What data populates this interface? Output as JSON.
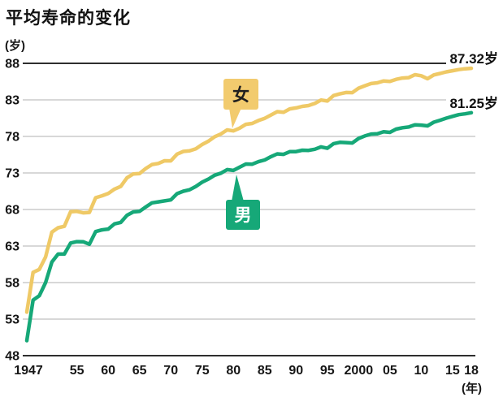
{
  "title": "平均寿命的变化",
  "chart_data": {
    "type": "line",
    "title": "平均寿命的变化",
    "y_unit_label": "(岁)",
    "x_unit_label": "(年)",
    "ylim": [
      48,
      88
    ],
    "y_ticks": [
      48,
      53,
      58,
      63,
      68,
      73,
      78,
      83,
      88
    ],
    "xlim": [
      1947,
      2018
    ],
    "x_tick_years": [
      1947,
      1955,
      1960,
      1965,
      1970,
      1975,
      1980,
      1985,
      1990,
      1995,
      2000,
      2005,
      2010,
      2015,
      2018
    ],
    "x_tick_labels": [
      "1947",
      "55",
      "60",
      "65",
      "70",
      "75",
      "80",
      "85",
      "90",
      "95",
      "2000",
      "05",
      "10",
      "15",
      "18"
    ],
    "grid": "horizontal",
    "legend_position": "inline-bubbles",
    "years": [
      1947,
      1948,
      1949,
      1950,
      1951,
      1952,
      1953,
      1954,
      1955,
      1956,
      1957,
      1958,
      1959,
      1960,
      1961,
      1962,
      1963,
      1964,
      1965,
      1966,
      1967,
      1968,
      1969,
      1970,
      1971,
      1972,
      1973,
      1974,
      1975,
      1976,
      1977,
      1978,
      1979,
      1980,
      1981,
      1982,
      1983,
      1984,
      1985,
      1986,
      1987,
      1988,
      1989,
      1990,
      1991,
      1992,
      1993,
      1994,
      1995,
      1996,
      1997,
      1998,
      1999,
      2000,
      2001,
      2002,
      2003,
      2004,
      2005,
      2006,
      2007,
      2008,
      2009,
      2010,
      2011,
      2012,
      2013,
      2014,
      2015,
      2016,
      2017,
      2018
    ],
    "series": [
      {
        "name": "女",
        "color": "#EFC966",
        "bubble_fill": "#F2CB6E",
        "bubble_text_color": "#1f1f1f",
        "end_label": "87.32岁",
        "values": [
          53.96,
          59.4,
          59.8,
          61.5,
          64.9,
          65.5,
          65.7,
          67.69,
          67.75,
          67.54,
          67.6,
          69.61,
          69.88,
          70.19,
          70.79,
          71.16,
          72.34,
          72.87,
          72.92,
          73.61,
          74.15,
          74.3,
          74.67,
          74.66,
          75.58,
          75.94,
          76.02,
          76.31,
          76.89,
          77.35,
          77.95,
          78.33,
          78.89,
          78.76,
          79.13,
          79.66,
          79.78,
          80.18,
          80.48,
          80.93,
          81.39,
          81.3,
          81.77,
          81.9,
          82.11,
          82.22,
          82.51,
          82.98,
          82.85,
          83.59,
          83.82,
          84.01,
          83.99,
          84.6,
          84.93,
          85.23,
          85.33,
          85.59,
          85.52,
          85.81,
          85.99,
          86.05,
          86.44,
          86.3,
          85.9,
          86.41,
          86.61,
          86.83,
          86.99,
          87.14,
          87.26,
          87.32
        ]
      },
      {
        "name": "男",
        "color": "#16A878",
        "bubble_fill": "#16A878",
        "bubble_text_color": "#ffffff",
        "end_label": "81.25岁",
        "values": [
          50.06,
          55.6,
          56.2,
          58.0,
          60.8,
          61.9,
          61.9,
          63.41,
          63.6,
          63.59,
          63.24,
          64.98,
          65.21,
          65.32,
          66.03,
          66.23,
          67.21,
          67.67,
          67.74,
          68.35,
          68.91,
          69.05,
          69.18,
          69.31,
          70.17,
          70.5,
          70.7,
          71.16,
          71.73,
          72.15,
          72.69,
          72.97,
          73.46,
          73.35,
          73.79,
          74.22,
          74.2,
          74.54,
          74.78,
          75.23,
          75.61,
          75.54,
          75.91,
          75.92,
          76.11,
          76.09,
          76.25,
          76.57,
          76.38,
          77.01,
          77.19,
          77.16,
          77.1,
          77.72,
          78.07,
          78.32,
          78.36,
          78.64,
          78.56,
          79.0,
          79.19,
          79.29,
          79.59,
          79.55,
          79.44,
          79.94,
          80.21,
          80.5,
          80.75,
          80.98,
          81.09,
          81.25
        ]
      }
    ],
    "colors": {
      "grid_light": "#cccccc",
      "grid_dark": "#2e2e2e",
      "text": "#161616",
      "background": "#ffffff"
    }
  }
}
